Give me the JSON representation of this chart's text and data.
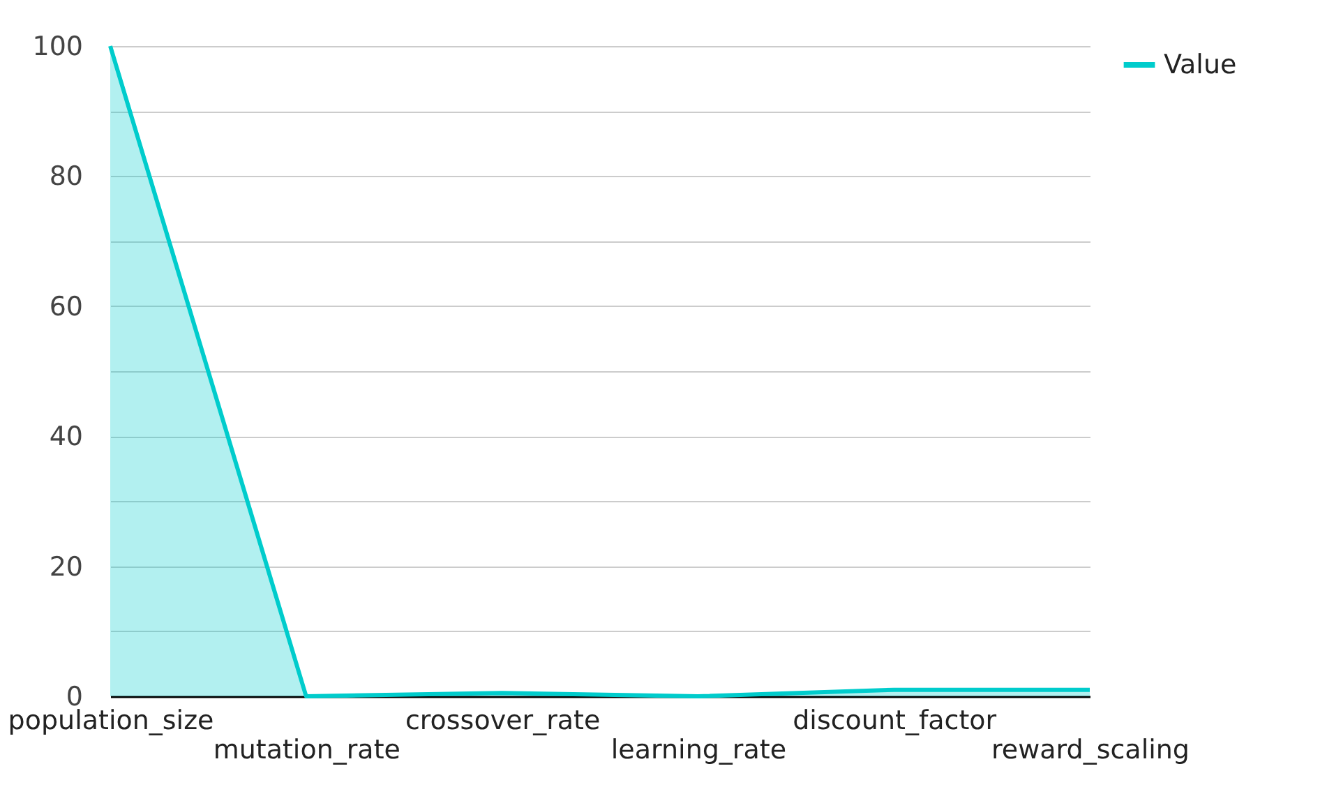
{
  "chart_data": {
    "type": "area",
    "categories": [
      "population_size",
      "mutation_rate",
      "crossover_rate",
      "learning_rate",
      "discount_factor",
      "reward_scaling"
    ],
    "series": [
      {
        "name": "Value",
        "color": "#00cccc",
        "values": [
          100,
          0,
          0.5,
          0,
          1,
          1
        ]
      }
    ],
    "ylim": [
      0,
      100
    ],
    "yticks": [
      0,
      {
        "value": 10,
        "label": null
      },
      20,
      {
        "value": 30,
        "label": null
      },
      40,
      {
        "value": 50,
        "label": null
      },
      60,
      {
        "value": 70,
        "label": null
      },
      80,
      {
        "value": 90,
        "label": null
      },
      100
    ],
    "grid": "y",
    "legend": "top right"
  }
}
